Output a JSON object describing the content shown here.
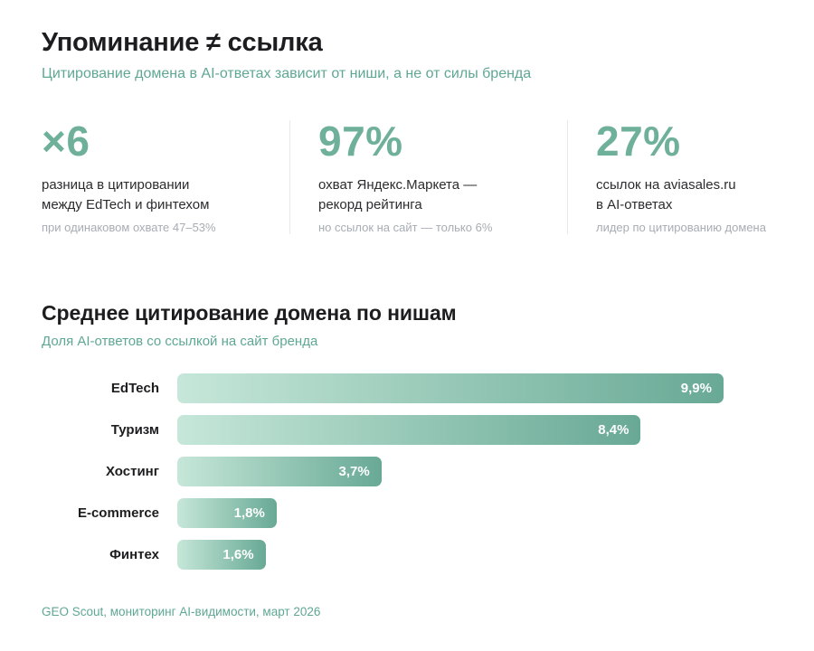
{
  "accent_color": "#5ea793",
  "header": {
    "title": "Упоминание ≠ ссылка",
    "subtitle": "Цитирование домена в AI-ответах зависит от ниши, а не от силы бренда"
  },
  "stats": [
    {
      "value": "×6",
      "description": "разница в цитировании\nмежду EdTech и финтехом",
      "note": "при одинаковом охвате 47–53%"
    },
    {
      "value": "97%",
      "description": "охват Яндекс.Маркета —\nрекорд рейтинга",
      "note": "но ссылок на сайт — только 6%"
    },
    {
      "value": "27%",
      "description": "ссылок на aviasales.ru\nв AI-ответах",
      "note": "лидер по цитированию домена"
    }
  ],
  "chart_section": {
    "title": "Среднее цитирование домена по нишам",
    "subtitle": "Доля AI-ответов со ссылкой на сайт бренда"
  },
  "chart_data": {
    "type": "bar",
    "orientation": "horizontal",
    "title": "Среднее цитирование домена по нишам",
    "subtitle": "Доля AI-ответов со ссылкой на сайт бренда",
    "categories": [
      "EdTech",
      "Туризм",
      "Хостинг",
      "E-commerce",
      "Финтех"
    ],
    "values": [
      9.9,
      8.4,
      3.7,
      1.8,
      1.6
    ],
    "value_labels": [
      "9,9%",
      "8,4%",
      "3,7%",
      "1,8%",
      "1,6%"
    ],
    "xlim": [
      0,
      9.9
    ],
    "grid": false,
    "legend": false,
    "bar_gradient": [
      "#c6e7d9",
      "#68a995"
    ]
  },
  "footer": {
    "source": "GEO Scout, мониторинг AI-видимости, март 2026"
  }
}
